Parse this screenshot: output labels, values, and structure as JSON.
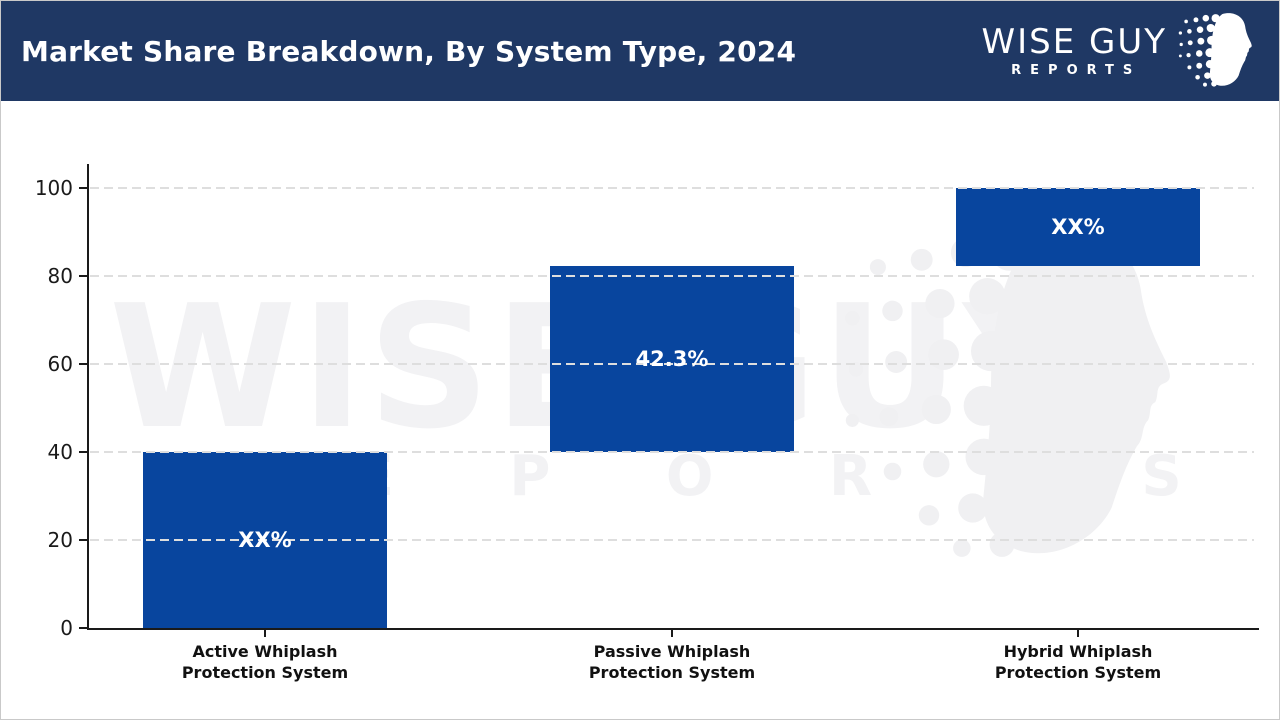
{
  "page": {
    "background": "#ffffff",
    "border_color": "#c9c9c9"
  },
  "header": {
    "bg_color": "#1F3864",
    "title": "Market Share Breakdown, By System Type, 2024",
    "logo": {
      "primary": "WISE GUY",
      "secondary": "REPORTS",
      "face_icon": "dotted-head-profile"
    }
  },
  "watermark": {
    "line1": "WISE GUY",
    "line2": "R E P O R T S",
    "face_icon": "dotted-head-profile",
    "color": "#f2f2f4"
  },
  "chart_data": {
    "type": "bar",
    "subtype": "floating-waterfall",
    "title": "Market Share Breakdown, By System Type, 2024",
    "categories": [
      "Active Whiplash\nProtection System",
      "Passive Whiplash\nProtection System",
      "Hybrid Whiplash\nProtection System"
    ],
    "series": [
      {
        "name": "Market share (%)",
        "segments": [
          {
            "category": "Active Whiplash Protection System",
            "start": 0,
            "end": 40,
            "label": "XX%"
          },
          {
            "category": "Passive Whiplash Protection System",
            "start": 40,
            "end": 82.3,
            "label": "42.3%"
          },
          {
            "category": "Hybrid Whiplash Protection System",
            "start": 82.3,
            "end": 100,
            "label": "XX%"
          }
        ]
      }
    ],
    "xlabel": "",
    "ylabel": "",
    "ylim": [
      0,
      100
    ],
    "yticks": [
      0,
      20,
      40,
      60,
      80,
      100
    ],
    "grid": "horizontal-dashed",
    "legend": "none",
    "bar_color": "#08459E",
    "bar_label_color": "#ffffff",
    "gridline_color": "#dedede",
    "axis_color": "#1a1a1a"
  }
}
